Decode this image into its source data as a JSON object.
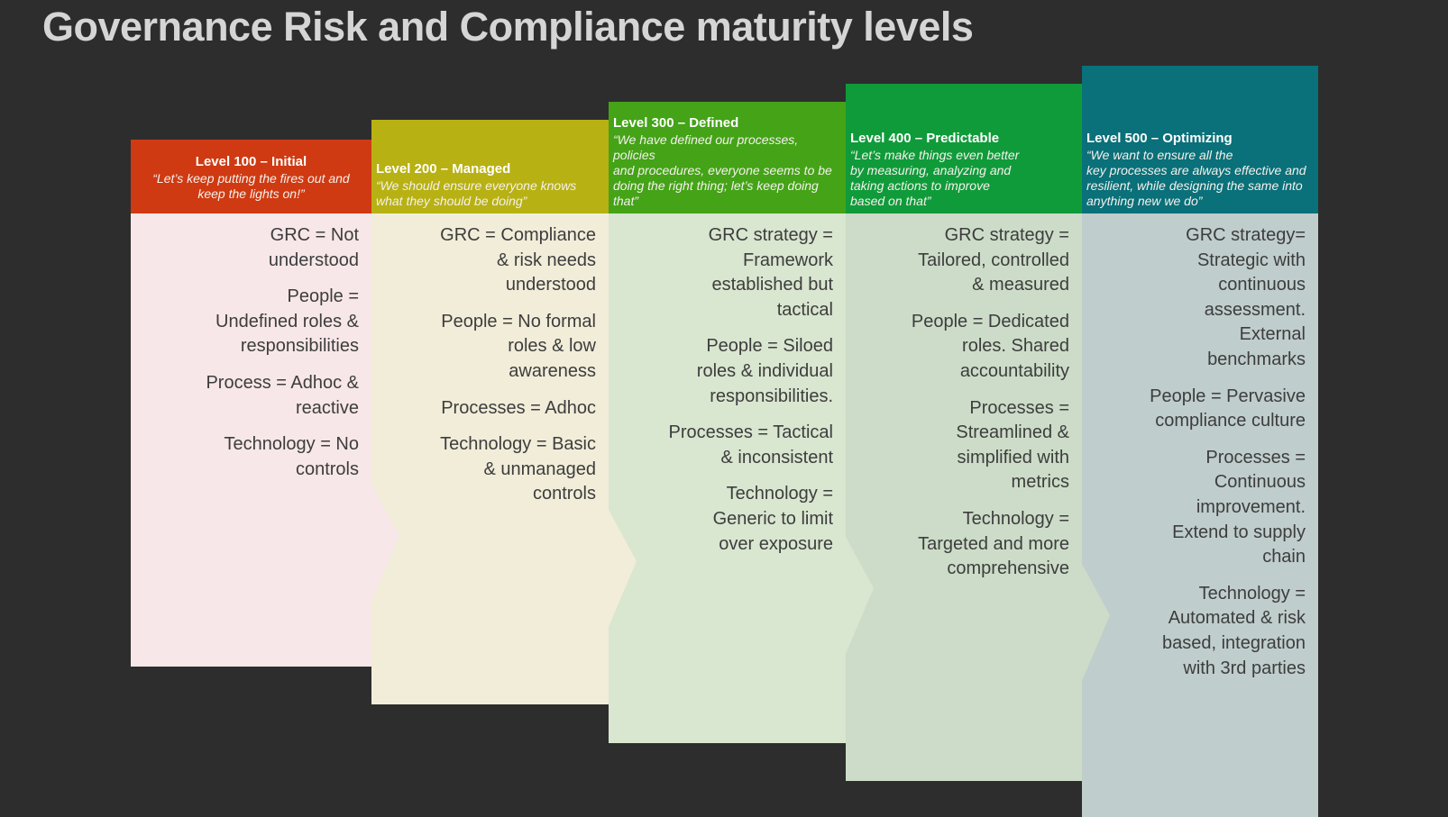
{
  "page": {
    "background": "#2d2d2d",
    "title": "Governance Risk and Compliance maturity levels",
    "title_color": "#d5d5d5"
  },
  "columns": [
    {
      "level": "Level 100 – Initial",
      "quote": "“Let’s keep putting the fires out and\nkeep the lights on!”",
      "items": [
        "GRC = Not\nunderstood",
        "People =\nUndefined roles &\nresponsibilities",
        "Process = Adhoc &\nreactive",
        "Technology = No\ncontrols"
      ],
      "colors": {
        "header": "#cf3a12",
        "body": "#f8e7e8"
      }
    },
    {
      "level": "Level 200 – Managed",
      "quote": "“We should ensure everyone knows\nwhat they should be doing”",
      "items": [
        "GRC = Compliance\n& risk needs\nunderstood",
        "People = No formal\nroles & low\nawareness",
        "Processes = Adhoc",
        "Technology = Basic\n& unmanaged\ncontrols"
      ],
      "colors": {
        "header": "#b8b113",
        "body": "#f1edd9"
      }
    },
    {
      "level": "Level 300 – Defined",
      "quote": "“We have defined our processes, policies\nand procedures, everyone seems to be\ndoing the right thing; let’s keep doing\nthat”",
      "items": [
        "GRC strategy =\nFramework\nestablished but\ntactical",
        "People = Siloed\nroles & individual\nresponsibilities.",
        "Processes = Tactical\n& inconsistent",
        "Technology =\nGeneric to limit\nover exposure"
      ],
      "colors": {
        "header": "#44a317",
        "body": "#d9e6d0"
      }
    },
    {
      "level": "Level 400 – Predictable",
      "quote": "“Let’s make things even better\nby measuring, analyzing and\ntaking actions to improve\nbased on that”",
      "items": [
        "GRC strategy =\nTailored, controlled\n& measured",
        "People = Dedicated\nroles. Shared\naccountability",
        "Processes =\nStreamlined &\nsimplified with\nmetrics",
        "Technology =\nTargeted and more\ncomprehensive"
      ],
      "colors": {
        "header": "#109b3a",
        "body": "#ccdcc8"
      }
    },
    {
      "level": "Level 500 – Optimizing",
      "quote": "“We want to ensure all the\nkey processes are always effective and\nresilient, while designing the same into\nanything new we do”",
      "items": [
        "GRC strategy=\nStrategic with\ncontinuous\nassessment.\nExternal\nbenchmarks",
        "People = Pervasive\ncompliance culture",
        "Processes =\nContinuous\nimprovement.\nExtend to supply\nchain",
        "Technology =\nAutomated & risk\nbased, integration\nwith 3rd parties"
      ],
      "colors": {
        "header": "#0a7079",
        "body": "#bfcdcc"
      }
    }
  ]
}
